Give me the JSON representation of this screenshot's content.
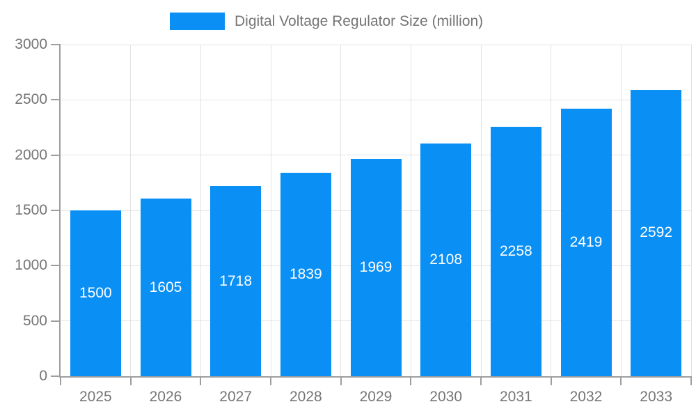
{
  "chart_data": {
    "type": "bar",
    "title": "Digital Voltage Regulator Size (million)",
    "legend": "Digital Voltage Regulator Size (million)",
    "categories": [
      "2025",
      "2026",
      "2027",
      "2028",
      "2029",
      "2030",
      "2031",
      "2032",
      "2033"
    ],
    "values": [
      1500,
      1605,
      1718,
      1839,
      1969,
      2108,
      2258,
      2419,
      2592
    ],
    "xlabel": "",
    "ylabel": "",
    "ylim": [
      0,
      3000
    ],
    "yticks": [
      0,
      500,
      1000,
      1500,
      2000,
      2500,
      3000
    ],
    "grid": true,
    "legend_position": "top-center",
    "value_label_position": "inside-center",
    "colors": {
      "bar": "#0a8ff5",
      "axis": "#9e9e9e",
      "grid": "#e3e3e3",
      "text": "#757575",
      "value_label": "#ffffff"
    }
  }
}
